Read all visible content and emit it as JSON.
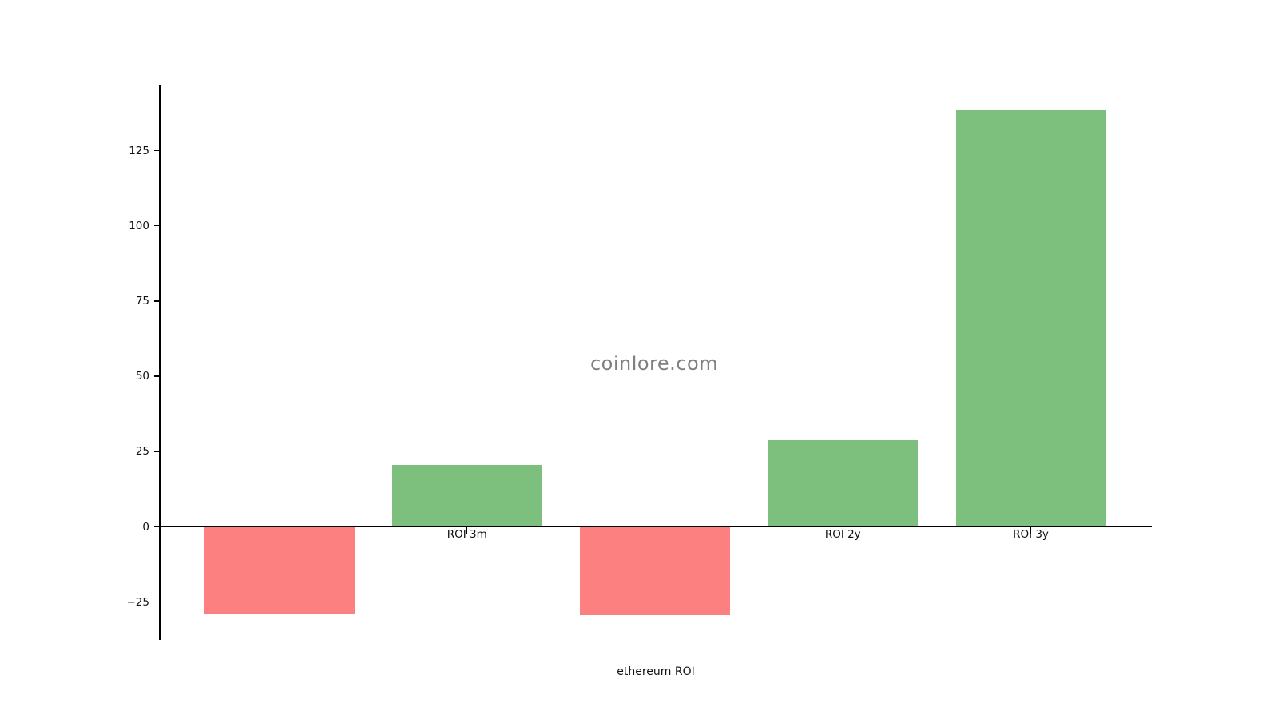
{
  "page": {
    "background_color": "#ffffff"
  },
  "watermark": {
    "text": "coinlore.com",
    "color": "#7f7f7f"
  },
  "chart_data": {
    "type": "bar",
    "title": "",
    "xlabel": "ethereum ROI",
    "ylabel": "",
    "categories": [
      "",
      "ROI 3m",
      "",
      "ROI 2y",
      "ROI 3y"
    ],
    "values": [
      -29.1,
      20.7,
      -29.2,
      28.9,
      138.4
    ],
    "bar_colors": [
      "#fd8080",
      "#7dbf7d",
      "#fd8080",
      "#7dbf7d",
      "#7dbf7d"
    ],
    "positive_color": "#7dbf7d",
    "negative_color": "#fd8080",
    "yticks": [
      125,
      100,
      75,
      50,
      25,
      0,
      -25
    ],
    "ytick_labels": [
      "125",
      "100",
      "75",
      "50",
      "25",
      "0",
      "−25"
    ],
    "ylim": [
      -37.6,
      146.6
    ],
    "grid": false,
    "legend": null,
    "axis_color": "#000000",
    "note_hidden_labels": "first and third category tick labels are covered by the negative (red) bars"
  }
}
